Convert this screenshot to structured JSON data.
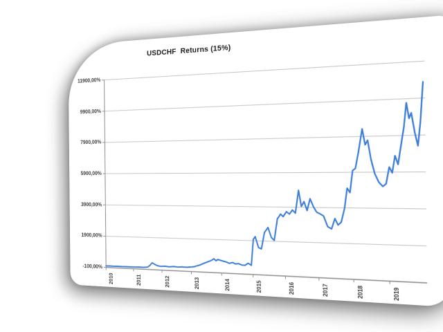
{
  "page": {
    "background": "#ffffff"
  },
  "chart_data": {
    "type": "line",
    "title": "USDCHF  Returns (15%)",
    "legend": "none",
    "grid": "horizontal-major-only",
    "xlabel": "",
    "ylabel": "",
    "xlim": [
      2010,
      2020
    ],
    "ylim": [
      -100,
      11900
    ],
    "y_tick_labels": [
      "11900,00%",
      "9900,00%",
      "7900,00%",
      "5900,00%",
      "3900,00%",
      "1900,00%",
      "-100,00%"
    ],
    "y_tick_values": [
      11900,
      9900,
      7900,
      5900,
      3900,
      1900,
      -100
    ],
    "x_tick_labels": [
      "2010",
      "2011",
      "2012",
      "2013",
      "2014",
      "2015",
      "2016",
      "2017",
      "2018",
      "2019"
    ],
    "colors": {
      "series": "#3c7dd9",
      "gridline": "#c4c4c4",
      "axis": "#8f8f8f",
      "title": "#1a1a1a",
      "tick_text": "#3c3c3c"
    },
    "series": [
      {
        "name": "USDCHF Returns",
        "points": [
          [
            2010.0,
            0
          ],
          [
            2010.15,
            6
          ],
          [
            2010.3,
            2
          ],
          [
            2010.45,
            8
          ],
          [
            2010.6,
            4
          ],
          [
            2010.75,
            10
          ],
          [
            2010.9,
            6
          ],
          [
            2011.05,
            14
          ],
          [
            2011.2,
            22
          ],
          [
            2011.35,
            18
          ],
          [
            2011.5,
            45
          ],
          [
            2011.58,
            160
          ],
          [
            2011.66,
            330
          ],
          [
            2011.75,
            235
          ],
          [
            2011.85,
            155
          ],
          [
            2011.95,
            130
          ],
          [
            2012.1,
            150
          ],
          [
            2012.25,
            125
          ],
          [
            2012.4,
            155
          ],
          [
            2012.55,
            135
          ],
          [
            2012.7,
            160
          ],
          [
            2012.85,
            145
          ],
          [
            2013.0,
            175
          ],
          [
            2013.1,
            210
          ],
          [
            2013.2,
            265
          ],
          [
            2013.3,
            330
          ],
          [
            2013.4,
            420
          ],
          [
            2013.5,
            500
          ],
          [
            2013.6,
            575
          ],
          [
            2013.68,
            645
          ],
          [
            2013.75,
            740
          ],
          [
            2013.82,
            620
          ],
          [
            2013.88,
            700
          ],
          [
            2013.95,
            665
          ],
          [
            2014.05,
            620
          ],
          [
            2014.15,
            575
          ],
          [
            2014.25,
            500
          ],
          [
            2014.35,
            560
          ],
          [
            2014.45,
            480
          ],
          [
            2014.55,
            505
          ],
          [
            2014.65,
            430
          ],
          [
            2014.75,
            420
          ],
          [
            2014.85,
            555
          ],
          [
            2014.95,
            440
          ],
          [
            2015.02,
            1980
          ],
          [
            2015.08,
            2140
          ],
          [
            2015.18,
            1500
          ],
          [
            2015.27,
            1430
          ],
          [
            2015.37,
            2400
          ],
          [
            2015.48,
            2700
          ],
          [
            2015.58,
            2120
          ],
          [
            2015.67,
            1950
          ],
          [
            2015.77,
            3200
          ],
          [
            2015.87,
            3490
          ],
          [
            2015.95,
            3350
          ],
          [
            2016.05,
            3640
          ],
          [
            2016.14,
            3500
          ],
          [
            2016.23,
            3740
          ],
          [
            2016.32,
            3560
          ],
          [
            2016.42,
            4880
          ],
          [
            2016.5,
            3950
          ],
          [
            2016.58,
            4230
          ],
          [
            2016.67,
            3720
          ],
          [
            2016.76,
            4400
          ],
          [
            2016.86,
            3930
          ],
          [
            2016.95,
            3640
          ],
          [
            2017.05,
            3540
          ],
          [
            2017.15,
            3430
          ],
          [
            2017.27,
            2820
          ],
          [
            2017.38,
            2700
          ],
          [
            2017.48,
            3290
          ],
          [
            2017.57,
            2930
          ],
          [
            2017.66,
            3090
          ],
          [
            2017.76,
            3880
          ],
          [
            2017.84,
            5010
          ],
          [
            2017.92,
            4760
          ],
          [
            2018.0,
            6000
          ],
          [
            2018.08,
            6120
          ],
          [
            2018.17,
            7020
          ],
          [
            2018.28,
            8320
          ],
          [
            2018.36,
            7430
          ],
          [
            2018.43,
            7680
          ],
          [
            2018.52,
            6620
          ],
          [
            2018.62,
            5820
          ],
          [
            2018.73,
            5340
          ],
          [
            2018.84,
            5110
          ],
          [
            2018.93,
            5260
          ],
          [
            2019.02,
            6180
          ],
          [
            2019.1,
            5860
          ],
          [
            2019.18,
            6800
          ],
          [
            2019.26,
            6320
          ],
          [
            2019.34,
            7280
          ],
          [
            2019.43,
            8380
          ],
          [
            2019.5,
            9680
          ],
          [
            2019.57,
            8820
          ],
          [
            2019.63,
            9120
          ],
          [
            2019.72,
            8040
          ],
          [
            2019.8,
            7320
          ],
          [
            2019.87,
            8580
          ],
          [
            2019.95,
            10780
          ]
        ]
      }
    ]
  }
}
